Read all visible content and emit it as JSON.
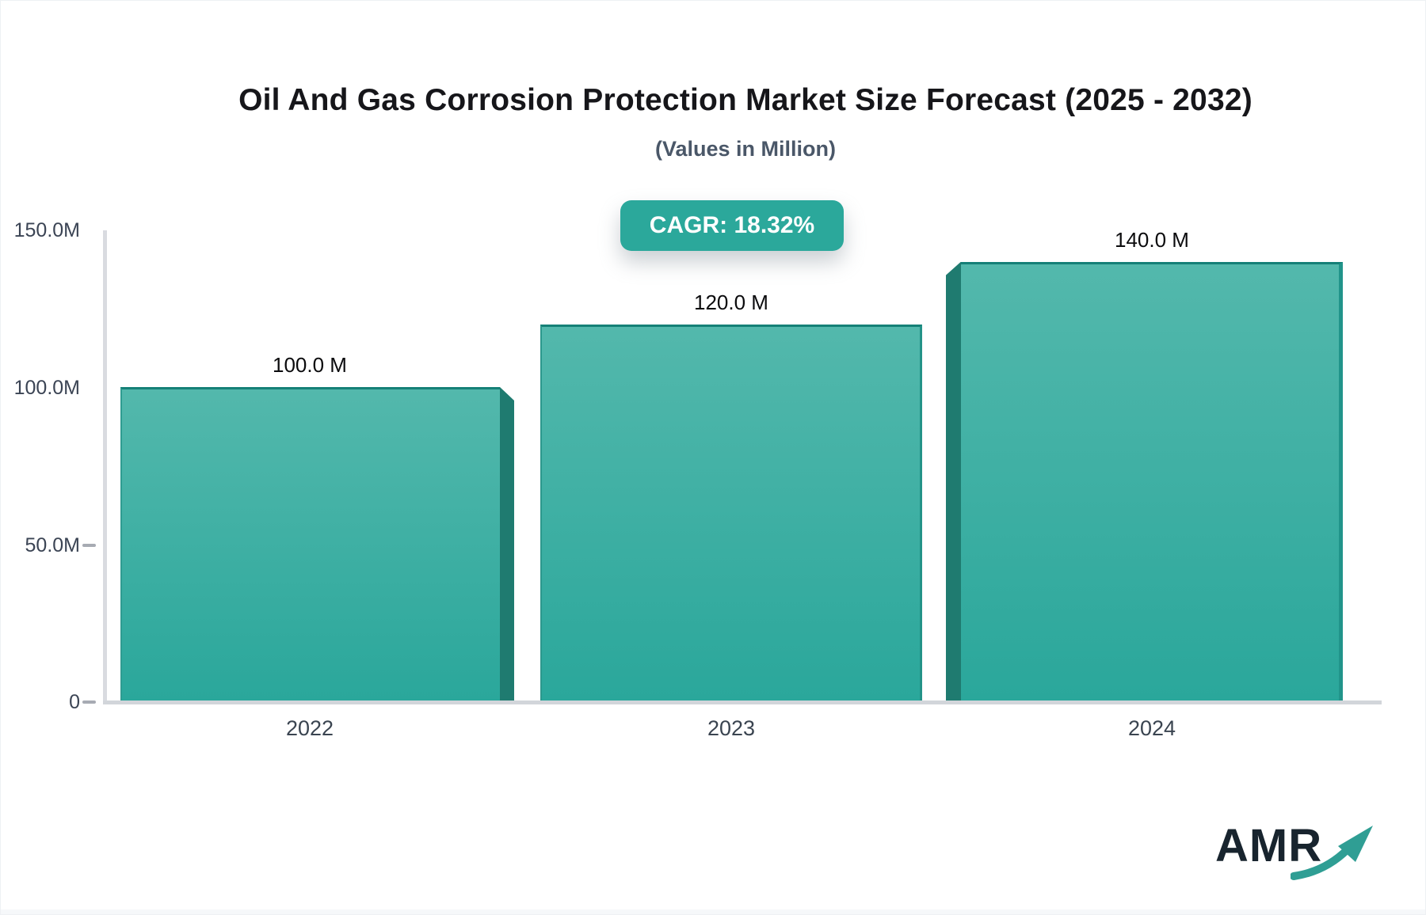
{
  "header": {
    "title": "Oil And Gas Corrosion Protection Market Size Forecast (2025 - 2032)",
    "subtitle": "(Values in Million)"
  },
  "badge": {
    "label": "CAGR: 18.32%"
  },
  "chart_data": {
    "type": "bar",
    "title": "Oil And Gas Corrosion Protection Market Size Forecast (2025 - 2032)",
    "subtitle": "(Values in Million)",
    "unit": "Million",
    "cagr_label": "CAGR: 18.32%",
    "categories": [
      "2022",
      "2023",
      "2024"
    ],
    "values": [
      100.0,
      120.0,
      140.0
    ],
    "value_labels": [
      "100.0 M",
      "120.0 M",
      "140.0 M"
    ],
    "xlabel": "",
    "ylabel": "",
    "ylim": [
      0,
      150
    ],
    "yticks": [
      "150.0M",
      "100.0M",
      "50.0M",
      "0"
    ],
    "ytick_values": [
      150,
      100,
      50,
      0
    ],
    "grid": false,
    "legend": "none",
    "bar_color_top": "#53b8ac",
    "bar_color_bottom": "#2aa79b",
    "bar_edge_3d_color": "#1f7b70",
    "accent_color": "#2ba89b",
    "axis_color": "#d2d5da"
  },
  "logo": {
    "text": "AMR",
    "arrow_color": "#2f9e94"
  }
}
